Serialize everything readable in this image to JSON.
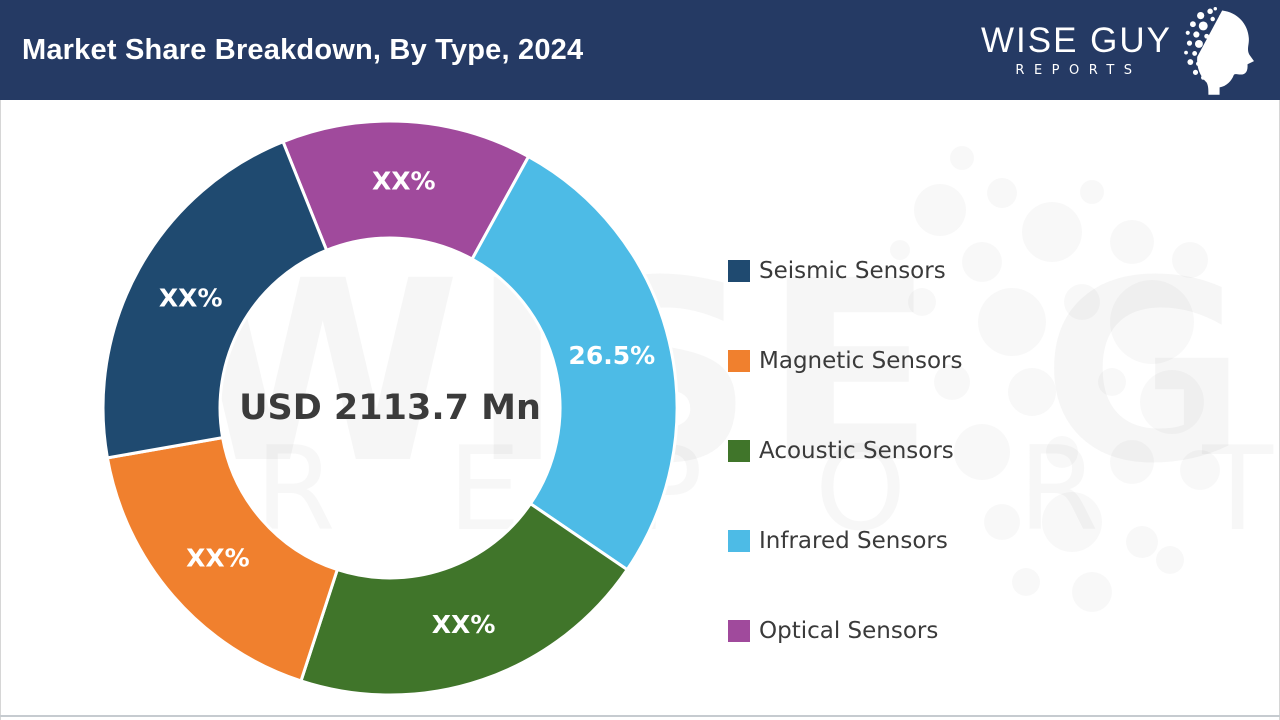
{
  "header": {
    "title": "Market Share Breakdown, By Type, 2024",
    "logo": {
      "name": "WISE GUY",
      "subtitle": "REPORTS"
    }
  },
  "chart": {
    "center_value": "USD 2113.7 Mn"
  },
  "chart_data": {
    "type": "pie",
    "subtype": "donut",
    "title": "Market Share Breakdown, By Type, 2024",
    "center_text": "USD 2113.7 Mn",
    "start_angle_deg": -21.9,
    "direction": "clockwise",
    "legend_position": "right",
    "slices": [
      {
        "name": "Optical Sensors",
        "pct": 14.1,
        "label": "XX%",
        "color": "#A04A9C"
      },
      {
        "name": "Infrared Sensors",
        "pct": 26.5,
        "label": "26.5%",
        "color": "#4DBBE6"
      },
      {
        "name": "Acoustic Sensors",
        "pct": 20.5,
        "label": "XX%",
        "color": "#40752A"
      },
      {
        "name": "Magnetic Sensors",
        "pct": 17.2,
        "label": "XX%",
        "color": "#F0802E"
      },
      {
        "name": "Seismic Sensors",
        "pct": 21.7,
        "label": "XX%",
        "color": "#1F4A70"
      }
    ]
  },
  "legend": {
    "items": [
      {
        "label": "Seismic Sensors",
        "color": "#1F4A70"
      },
      {
        "label": "Magnetic Sensors",
        "color": "#F0802E"
      },
      {
        "label": "Acoustic Sensors",
        "color": "#40752A"
      },
      {
        "label": "Infrared Sensors",
        "color": "#4DBBE6"
      },
      {
        "label": "Optical Sensors",
        "color": "#A04A9C"
      }
    ]
  },
  "watermark": {
    "line1": "WISE GUY",
    "line2": "REPORTS"
  }
}
